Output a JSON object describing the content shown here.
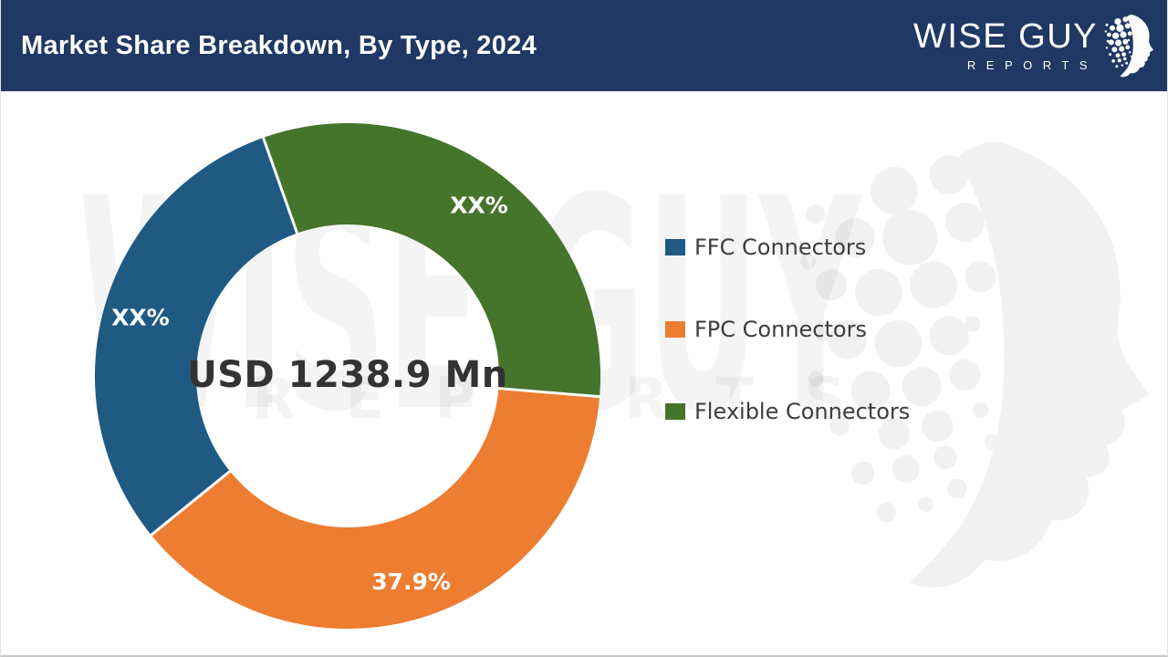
{
  "header": {
    "title": "Market Share Breakdown, By Type, 2024",
    "logo": {
      "line1": "WISE GUY",
      "line2": "REPORTS"
    }
  },
  "watermark": {
    "line1": "WISE GUY",
    "line2": "REPORTS"
  },
  "chart_data": {
    "type": "pie",
    "subtype": "donut",
    "center_label": "USD 1238.9 Mn",
    "legend_position": "right",
    "segments": [
      {
        "name": "FFC Connectors",
        "label": "XX%",
        "value_pct": 30.4,
        "color": "#1f5a82",
        "start_deg": 231.0,
        "end_deg": 340.5
      },
      {
        "name": "FPC Connectors",
        "label": "37.9%",
        "value_pct": 37.9,
        "color": "#ed7d31",
        "start_deg": 94.7,
        "end_deg": 231.0
      },
      {
        "name": "Flexible Connectors",
        "label": "XX%",
        "value_pct": 31.7,
        "color": "#45752b",
        "start_deg": 340.5,
        "end_deg": 454.7
      }
    ],
    "colors": {
      "header_bg": "#1f3864",
      "label_text": "#ffffff",
      "center_text": "#333333"
    }
  }
}
